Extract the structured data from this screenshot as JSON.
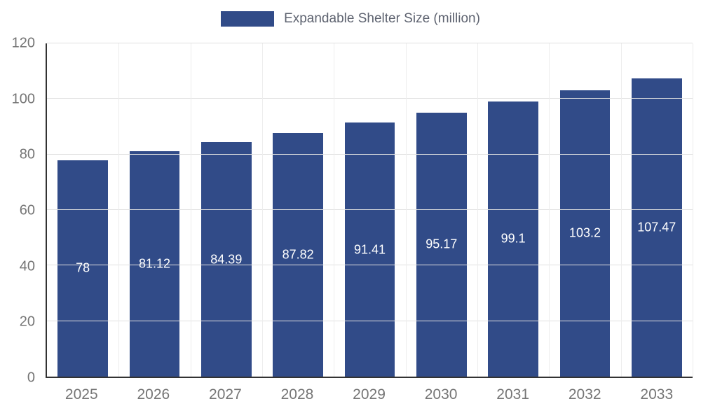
{
  "colors": {
    "bar": "#314b88",
    "axis": "#333333",
    "grid_horizontal": "#e0e0e0",
    "grid_vertical": "#ededed",
    "tick_text": "#757575",
    "bar_label_text": "#ffffff",
    "legend_text": "#5e6370",
    "background": "#ffffff"
  },
  "chart_data": {
    "type": "bar",
    "title": "",
    "legend": "Expandable Shelter Size (million)",
    "legend_position": "top",
    "categories": [
      "2025",
      "2026",
      "2027",
      "2028",
      "2029",
      "2030",
      "2031",
      "2032",
      "2033"
    ],
    "values": [
      78,
      81.12,
      84.39,
      87.82,
      91.41,
      95.17,
      99.1,
      103.2,
      107.47
    ],
    "value_labels": [
      "78",
      "81.12",
      "84.39",
      "87.82",
      "91.41",
      "95.17",
      "99.1",
      "103.2",
      "107.47"
    ],
    "xlabel": "",
    "ylabel": "",
    "ylim": [
      0,
      120
    ],
    "yticks": [
      0,
      20,
      40,
      60,
      80,
      100,
      120
    ],
    "grid": true
  }
}
